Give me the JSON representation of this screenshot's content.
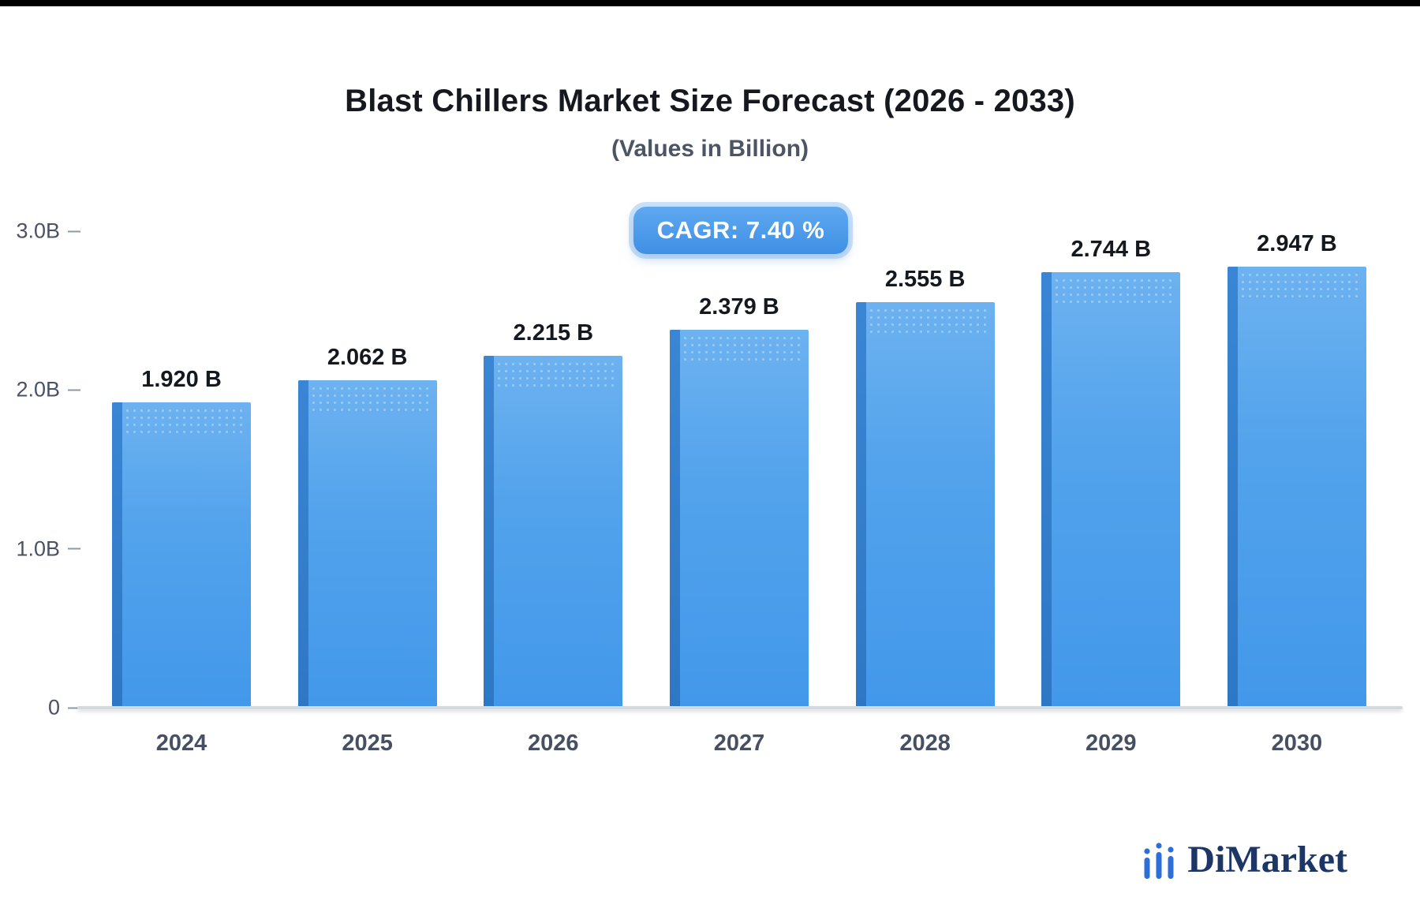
{
  "page": {
    "title": "Blast Chillers Market Size Forecast (2026 - 2033)",
    "subtitle": "(Values in Billion)",
    "cagr_label": "CAGR: 7.40 %",
    "accent_color": "#4496e8",
    "brand": {
      "name": "DiMarket",
      "icon": "bar-chart-icon",
      "color": "#1c3666"
    }
  },
  "chart_data": {
    "type": "bar",
    "title": "Blast Chillers Market Size Forecast (2026 - 2033)",
    "subtitle": "(Values in Billion)",
    "categories": [
      "2024",
      "2025",
      "2026",
      "2027",
      "2028",
      "2029",
      "2030"
    ],
    "values": [
      1.92,
      2.062,
      2.215,
      2.379,
      2.555,
      2.744,
      2.947
    ],
    "value_labels": [
      "1.920 B",
      "2.062 B",
      "2.215 B",
      "2.379 B",
      "2.555 B",
      "2.744 B",
      "2.947 B"
    ],
    "unit": "Billion",
    "xlabel": "",
    "ylabel": "",
    "ylim": [
      0,
      3.0
    ],
    "yticks": [
      {
        "label": "0",
        "value": 0.0
      },
      {
        "label": "1.0B",
        "value": 1.0
      },
      {
        "label": "2.0B",
        "value": 2.0
      },
      {
        "label": "3.0B",
        "value": 3.0
      }
    ],
    "annotations": [
      "CAGR: 7.40 %"
    ],
    "grid": false,
    "legend": false,
    "bar_color_top": "#6db2f0",
    "bar_color_bottom": "#4298ea",
    "bar_side_color": "#2e77c4"
  }
}
